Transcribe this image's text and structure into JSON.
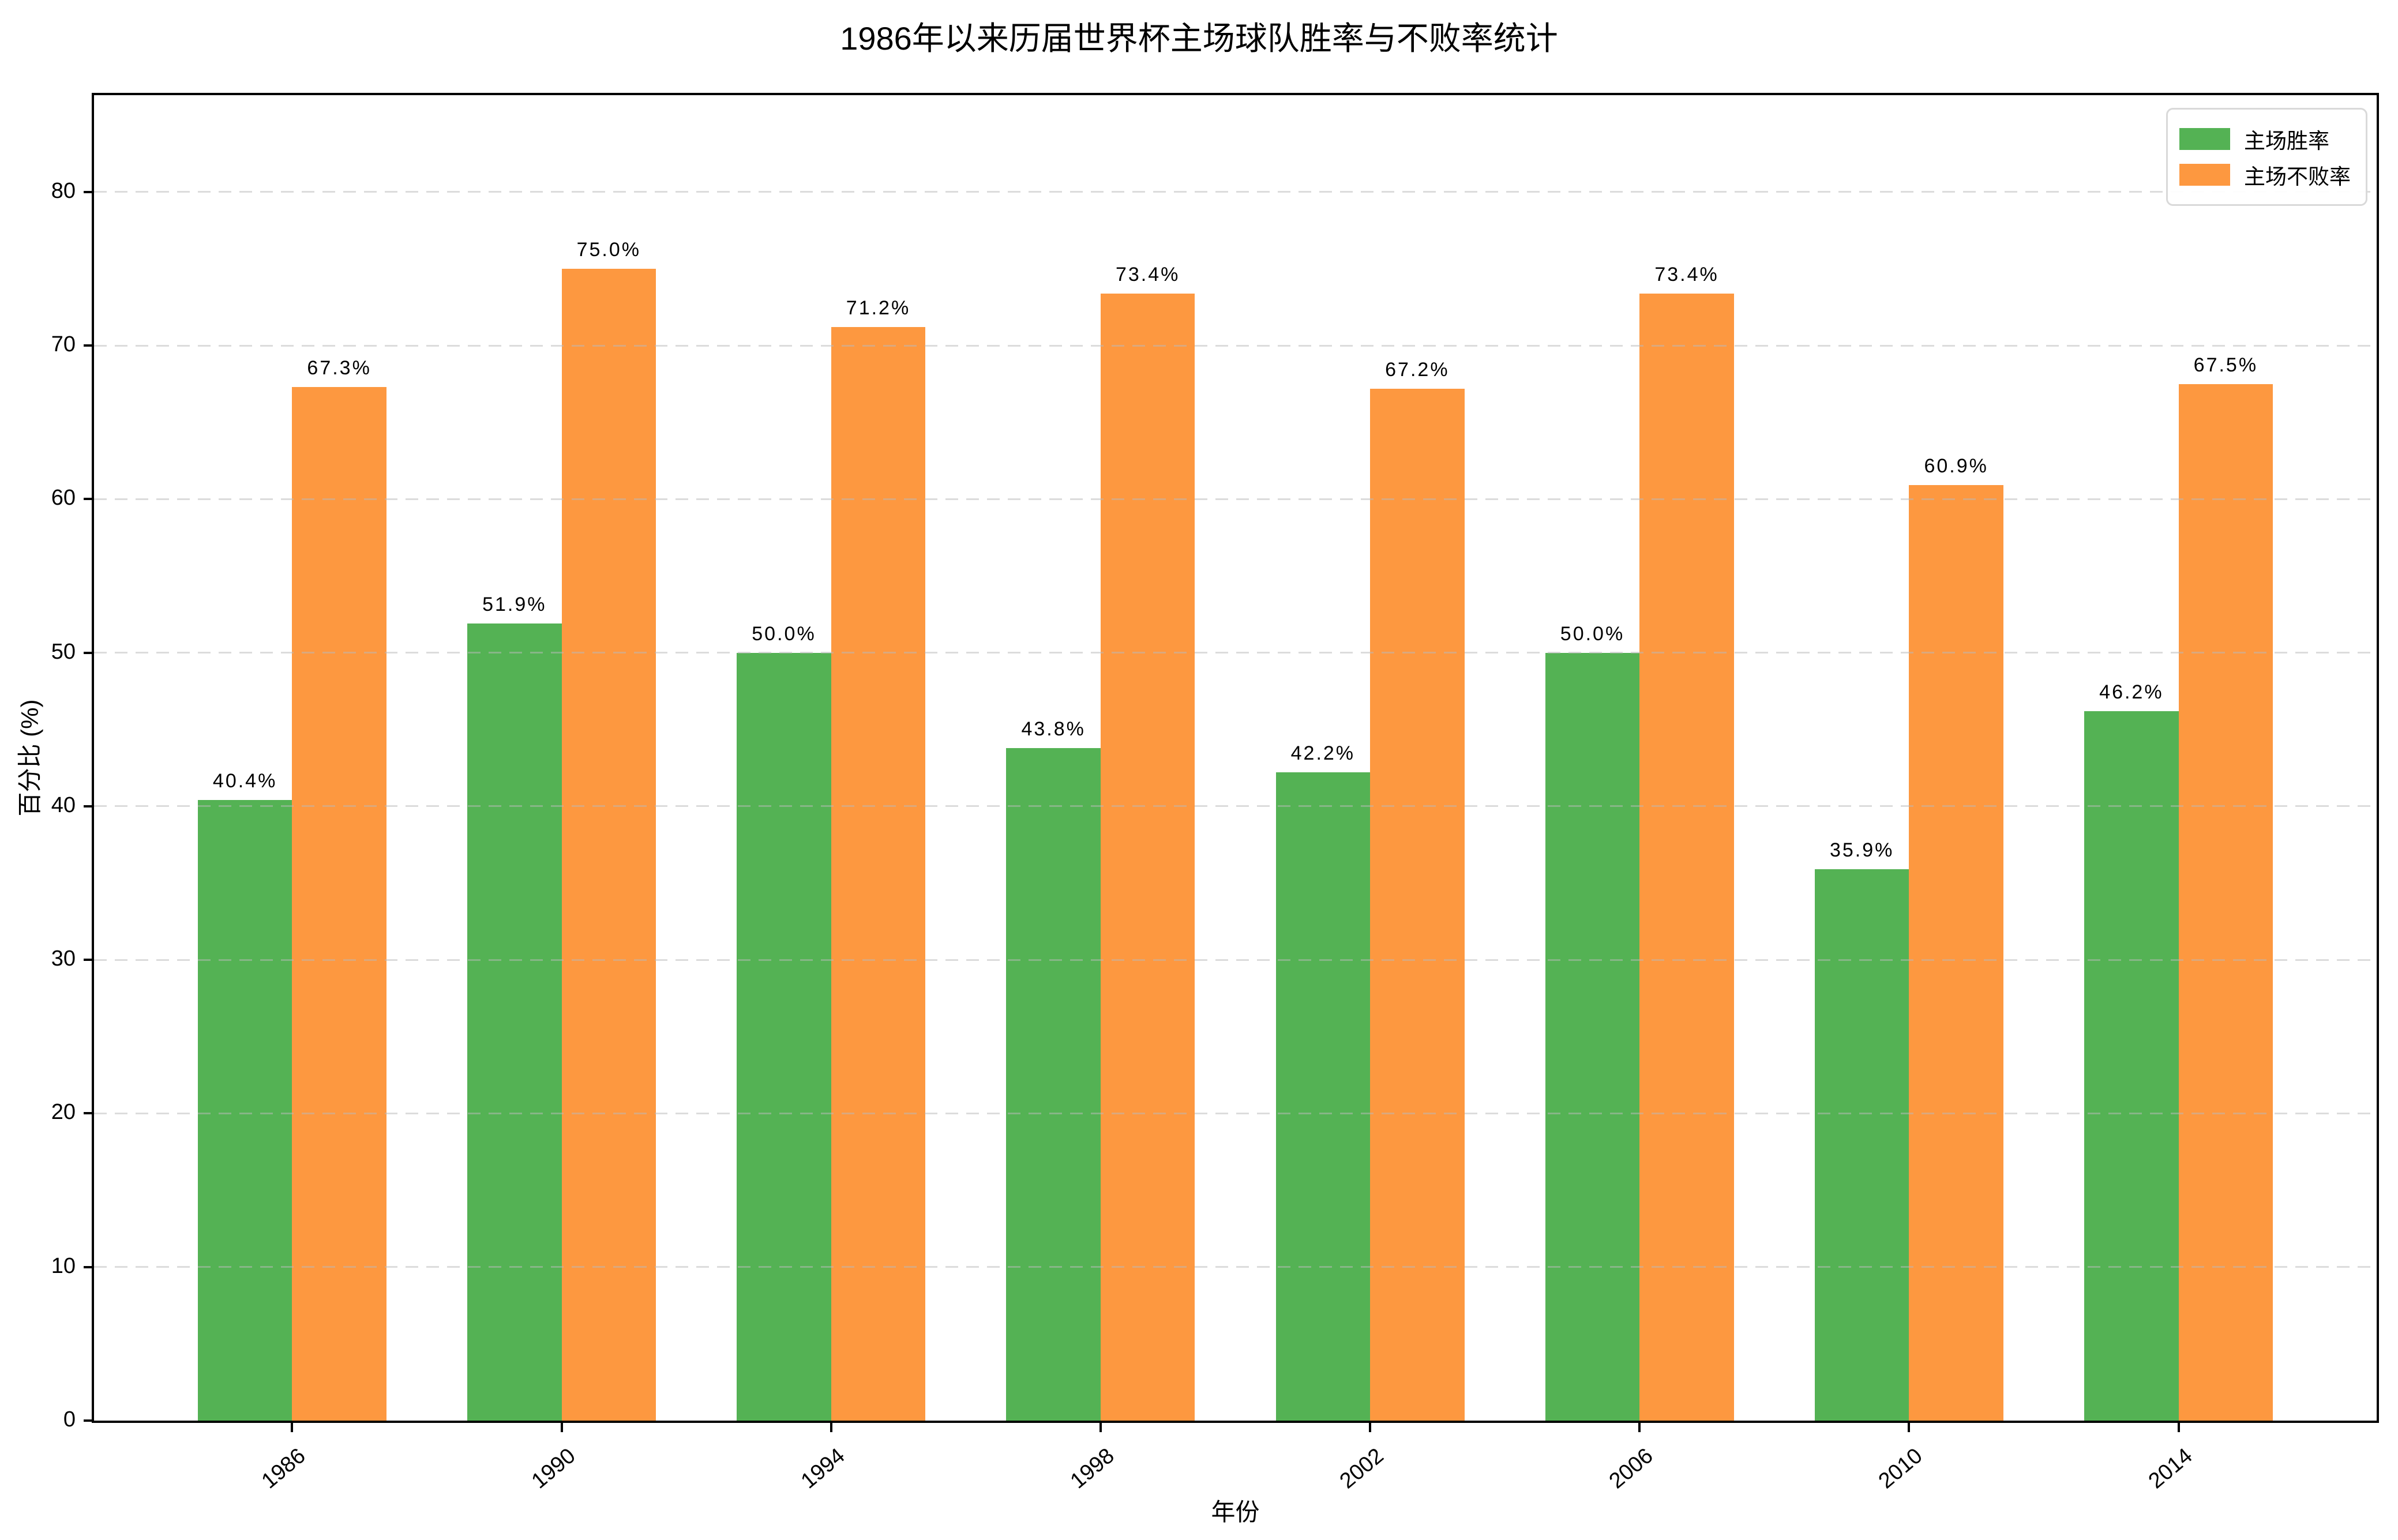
{
  "chart_data": {
    "type": "bar",
    "title": "1986年以来历届世界杯主场球队胜率与不败率统计",
    "xlabel": "年份",
    "ylabel": "百分比 (%)",
    "categories": [
      "1986",
      "1990",
      "1994",
      "1998",
      "2002",
      "2006",
      "2010",
      "2014"
    ],
    "series": [
      {
        "name": "主场胜率",
        "color": "#54b254",
        "values": [
          40.4,
          51.9,
          50.0,
          43.8,
          42.2,
          50.0,
          35.9,
          46.2
        ]
      },
      {
        "name": "主场不败率",
        "color": "#fd9840",
        "values": [
          67.3,
          75.0,
          71.2,
          73.4,
          67.2,
          73.4,
          60.9,
          67.5
        ]
      }
    ],
    "value_label_format": "percent_one_decimal",
    "yticks": [
      0,
      10,
      20,
      30,
      40,
      50,
      60,
      70,
      80
    ],
    "ylim": [
      0,
      86.3
    ],
    "grid": "horizontal dashed",
    "legend_position": "upper right",
    "background": "#ffffff"
  }
}
